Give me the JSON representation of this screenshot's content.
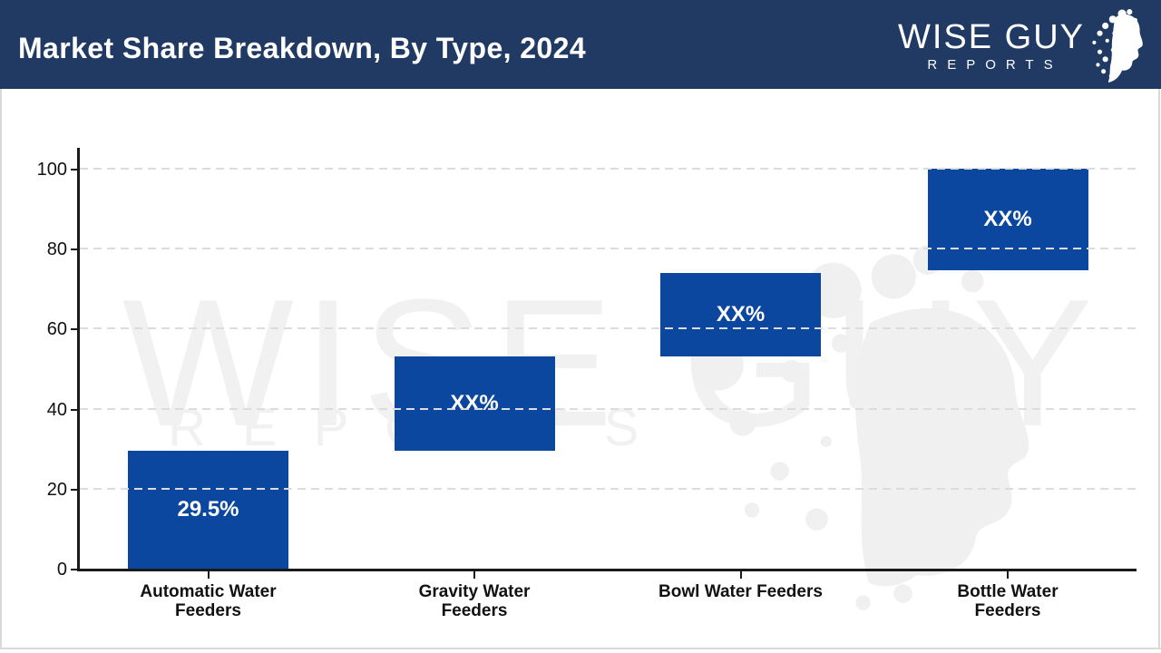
{
  "header": {
    "title": "Market Share Breakdown, By Type, 2024",
    "logo": {
      "line1": "WISE GUY",
      "line2": "REPORTS"
    }
  },
  "watermark": {
    "line1": "WISE GUY",
    "line2": "REPORTS"
  },
  "colors": {
    "header_bg": "#213a64",
    "bar": "#0b479f",
    "grid": "#dcdcdc",
    "axis": "#1a1a1a",
    "bar_label": "#ffffff",
    "watermark": "#f1f1f1"
  },
  "chart_data": {
    "type": "bar",
    "subtype": "waterfall-segments",
    "title": "Market Share Breakdown, By Type, 2024",
    "categories": [
      "Automatic Water\nFeeders",
      "Gravity Water\nFeeders",
      "Bowl Water Feeders",
      "Bottle Water\nFeeders"
    ],
    "bars": [
      {
        "category": "Automatic Water Feeders",
        "start": 0,
        "end": 29.5,
        "label": "29.5%"
      },
      {
        "category": "Gravity Water Feeders",
        "start": 29.5,
        "end": 53,
        "label": "XX%"
      },
      {
        "category": "Bowl Water Feeders",
        "start": 53,
        "end": 74,
        "label": "XX%"
      },
      {
        "category": "Bottle Water Feeders",
        "start": 74.5,
        "end": 100,
        "label": "XX%"
      }
    ],
    "yticks": [
      0,
      20,
      40,
      60,
      80,
      100
    ],
    "ylim": [
      0,
      105
    ],
    "xlabel": "",
    "ylabel": "",
    "grid": "dashed-horizontal",
    "legend": "none"
  }
}
